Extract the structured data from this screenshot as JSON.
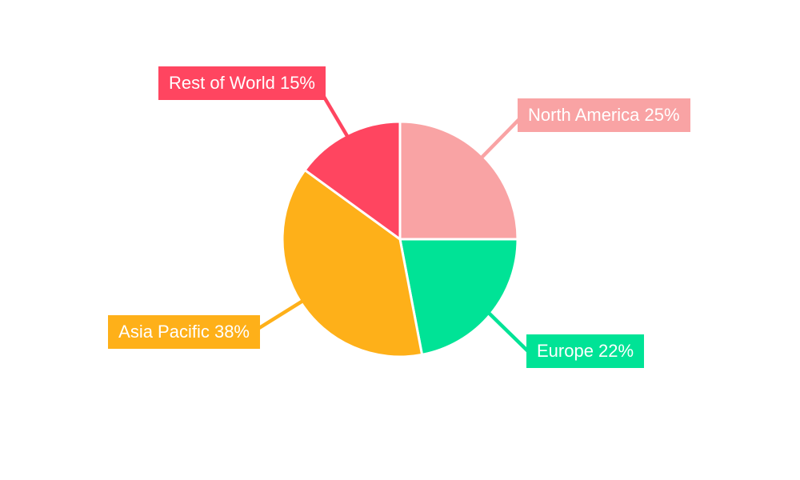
{
  "chart": {
    "background_color": "#ffffff",
    "text_color": "#ffffff"
  },
  "chart_data": {
    "type": "pie",
    "title": "",
    "legend": "none",
    "total": 100,
    "start_angle_deg": 0,
    "direction": "clockwise",
    "slices": [
      {
        "label": "North America",
        "value": 25,
        "display": "North America 25%",
        "color": "#F9A3A4"
      },
      {
        "label": "Europe",
        "value": 22,
        "display": "Europe 22%",
        "color": "#00E396"
      },
      {
        "label": "Asia Pacific",
        "value": 38,
        "display": "Asia Pacific 38%",
        "color": "#FEB019"
      },
      {
        "label": "Rest of World",
        "value": 15,
        "display": "Rest of World 15%",
        "color": "#FF4560"
      }
    ],
    "layout_hints": {
      "callout_labels": true,
      "label_text_color": "#ffffff",
      "slice_divider_color": "#ffffff"
    }
  }
}
